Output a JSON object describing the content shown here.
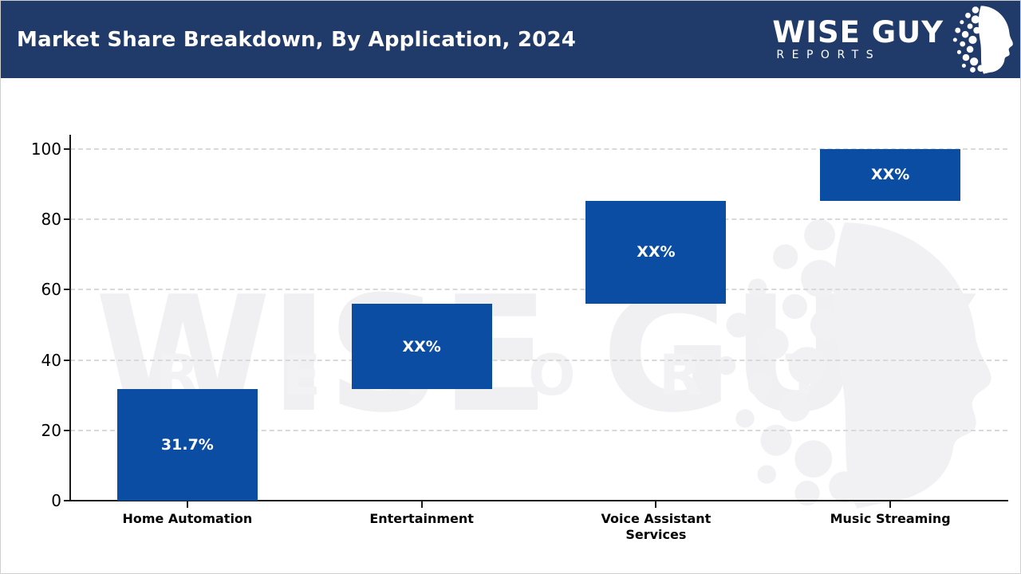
{
  "header": {
    "title": "Market Share Breakdown, By Application, 2024",
    "brand": {
      "line1": "WISE GUY",
      "line2": "REPORTS"
    }
  },
  "watermark": {
    "line1": "WISE GUY",
    "line2": "R E P O R T S"
  },
  "colors": {
    "header_bg": "#203a69",
    "bar": "#0b4da2",
    "grid": "#d9d9d9",
    "axis": "#1a1a1a",
    "bar_label": "#ffffff",
    "watermark": "#f0f0f3",
    "card_border": "#cfcfcf"
  },
  "chart_data": {
    "type": "bar",
    "subtype": "waterfall-floating-bars",
    "title": "Market Share Breakdown, By Application, 2024",
    "categories": [
      "Home Automation",
      "Entertainment",
      "Voice Assistant Services",
      "Music Streaming"
    ],
    "bars": [
      {
        "category": "Home Automation",
        "start": 0,
        "end": 31.7,
        "label": "31.7%"
      },
      {
        "category": "Entertainment",
        "start": 31.7,
        "end": 56,
        "label": "XX%"
      },
      {
        "category": "Voice Assistant Services",
        "start": 56,
        "end": 85.3,
        "label": "XX%"
      },
      {
        "category": "Music Streaming",
        "start": 85.3,
        "end": 100,
        "label": "XX%"
      }
    ],
    "xlabel": "",
    "ylabel": "",
    "ylim": [
      0,
      100
    ],
    "yticks": [
      0,
      20,
      40,
      60,
      80,
      100
    ],
    "grid": "horizontal-dashed",
    "legend": "none"
  }
}
